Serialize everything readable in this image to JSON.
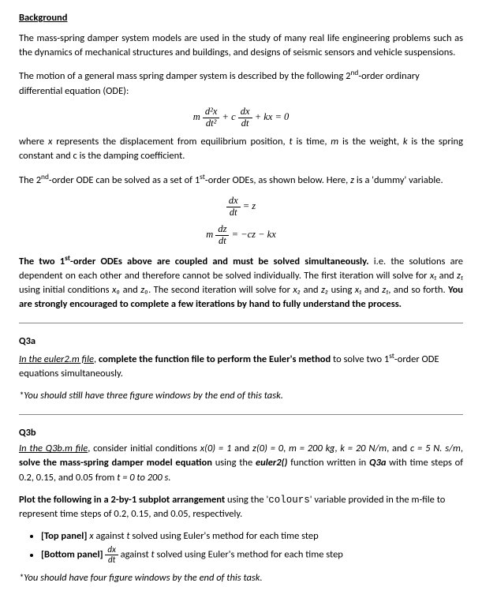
{
  "heading_background": "Background",
  "p1": "The mass-spring damper system models are used in the study of many real life engineering problems such as the dynamics of mechanical structures and buildings, and designs of seismic sensors and vehicle suspensions.",
  "p2_a": "The motion of a general mass spring damper system is described by the following 2",
  "p2_sup": "nd",
  "p2_b": "-order ordinary differential equation (ODE):",
  "eq1": {
    "m": "m",
    "d2x": "d²x",
    "dt2": "dt²",
    "plus1": " + ",
    "c": "c",
    "dx": "dx",
    "dt": "dt",
    "plus2": " + ",
    "kx": "kx",
    "eq0": " = 0"
  },
  "p3_a": "where ",
  "p3_x": "x",
  "p3_b": " represents the displacement from equilibrium position, ",
  "p3_t": "t",
  "p3_c": " is time, ",
  "p3_m": "m",
  "p3_d": " is the weight, ",
  "p3_k": "k",
  "p3_e": " is the spring constant and c is the damping coefficient.",
  "p4_a": "The 2",
  "p4_sup1": "nd",
  "p4_b": "-order ODE can be solved as a set of 1",
  "p4_sup2": "st",
  "p4_c": "-order ODEs, as shown below. Here, ",
  "p4_z": "z",
  "p4_d": " is a 'dummy' variable.",
  "eq2": {
    "dx": "dx",
    "dt": "dt",
    "eqz": " = z"
  },
  "eq3": {
    "m": "m",
    "dz": "dz",
    "dt": "dt",
    "rhs": " = −cz − kx"
  },
  "p5_a": "The two 1",
  "p5_sup": "st",
  "p5_b": "-order ODEs above are coupled and must be solved simultaneously.",
  "p5_c": " i.e. the solutions are dependent on each other and therefore cannot be solved individually. The first iteration will solve for ",
  "p5_x1": "x₁",
  "p5_d": " and ",
  "p5_z1": "z₁",
  "p5_e": " using initial conditions ",
  "p5_x0": "x₀",
  "p5_f": " and ",
  "p5_z0": "z₀",
  "p5_g": ". The second iteration will solve for ",
  "p5_x2": "x₂",
  "p5_h": " and ",
  "p5_z2": "z₂",
  "p5_i": " using ",
  "p5_j": " and ",
  "p5_k": ", and so forth. ",
  "p5_strong": "You are strongly encouraged to complete a few iterations by hand to fully understand the process.",
  "q3a_label": "Q3a",
  "q3a_line_a": "In the euler2.m file",
  "q3a_line_b": ", ",
  "q3a_line_c": "complete the function file to perform the Euler's method",
  "q3a_line_d": " to solve two 1",
  "q3a_sup": "st",
  "q3a_line_e": "-order ODE equations simultaneously.",
  "q3a_note": "*You should still have three figure windows by the end of this task.",
  "q3b_label": "Q3b",
  "q3b_a": "In the Q3b.m file",
  "q3b_b": ", consider initial conditions ",
  "q3b_x0": "x(0) = 1",
  "q3b_c": " and ",
  "q3b_z0": "z(0) = 0",
  "q3b_d": ", ",
  "q3b_m": "m = 200 kg",
  "q3b_e": ", ",
  "q3b_k": "k = 20 N/m",
  "q3b_f": ", and ",
  "q3b_cval": "c = 5 N. s/m",
  "q3b_g": ", ",
  "q3b_strong1": "solve the mass-spring damper model equation",
  "q3b_h": " using the ",
  "q3b_euler2": "euler2()",
  "q3b_i": " function written in ",
  "q3b_q3a": "Q3a",
  "q3b_j": " with time steps of 0.2, 0.15, and 0.05 from ",
  "q3b_tspan": "t = 0 to 200 s.",
  "q3b_plot_a": "Plot the following in a 2-by-1 subplot arrangement",
  "q3b_plot_b": " using the '",
  "q3b_colours": "colours",
  "q3b_plot_c": "' variable provided in the m-file to represent time steps of 0.2, 0.15, and 0.05, respectively.",
  "bullet1_a": "[Top panel]",
  "bullet1_b": "   x",
  "bullet1_c": " against ",
  "bullet1_t": "t",
  "bullet1_d": " solved using Euler's method for each time step",
  "bullet2_a": "[Bottom panel]",
  "bullet2_b": "  ",
  "bullet2_dx": "dx",
  "bullet2_dt": "dt",
  "bullet2_c": " against ",
  "bullet2_t": "t",
  "bullet2_d": " solved using Euler's method for each time step",
  "q3b_note": "*You should have four figure windows by the end of this task."
}
